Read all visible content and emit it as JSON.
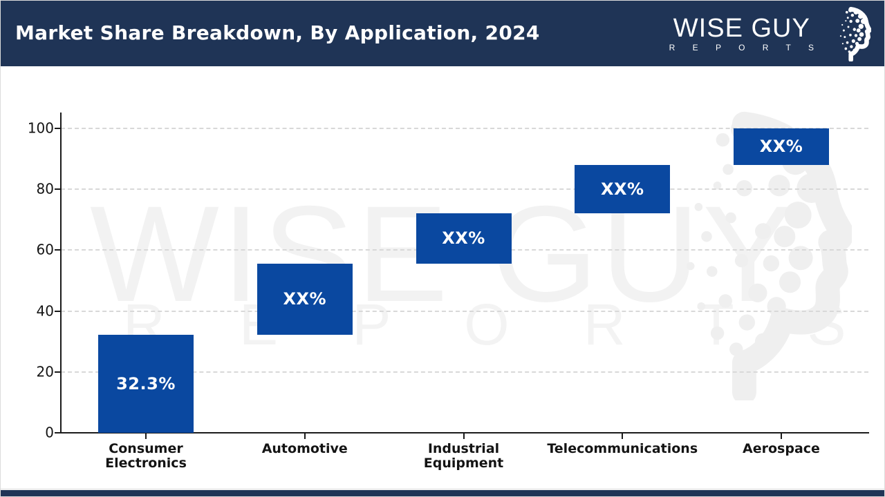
{
  "header": {
    "title": "Market Share Breakdown, By Application, 2024",
    "logo": {
      "line1": "WISE GUY",
      "line2": "R E P O R T S"
    }
  },
  "watermark": {
    "line1": "WISE GUY",
    "line2": "R E P O R T S"
  },
  "colors": {
    "header_bg": "#1f3456",
    "bar": "#0a48a0",
    "grid": "#d8d8d8",
    "axis": "#1a1a1a",
    "bar_label": "#ffffff",
    "watermark": "#f2f2f2"
  },
  "chart_data": {
    "type": "bar",
    "subtype": "waterfall",
    "title": "Market Share Breakdown, By Application, 2024",
    "categories": [
      "Consumer Electronics",
      "Automotive",
      "Industrial Equipment",
      "Telecommunications",
      "Aerospace"
    ],
    "segments": [
      {
        "category": "Consumer Electronics",
        "start": 0,
        "end": 32.3,
        "value": 32.3,
        "label": "32.3%"
      },
      {
        "category": "Automotive",
        "start": 32.3,
        "end": 55.6,
        "value": 23.3,
        "label": "XX%"
      },
      {
        "category": "Industrial Equipment",
        "start": 55.6,
        "end": 72.1,
        "value": 16.5,
        "label": "XX%"
      },
      {
        "category": "Telecommunications",
        "start": 72.1,
        "end": 88.0,
        "value": 15.9,
        "label": "XX%"
      },
      {
        "category": "Aerospace",
        "start": 88.0,
        "end": 100,
        "value": 12.0,
        "label": "XX%"
      }
    ],
    "ylim": [
      0,
      100
    ],
    "yticks": [
      0,
      20,
      40,
      60,
      80,
      100
    ],
    "xlabel": "",
    "ylabel": "",
    "grid": "horizontal-dashed",
    "legend": "none"
  }
}
